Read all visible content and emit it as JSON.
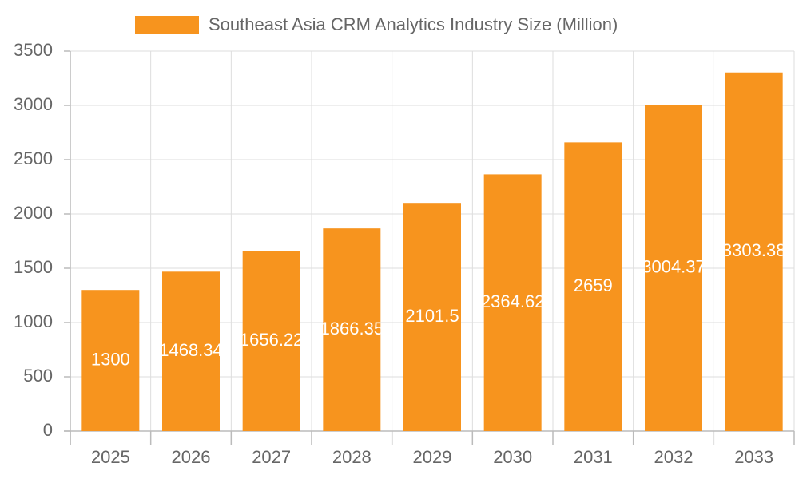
{
  "chart_data": {
    "type": "bar",
    "categories": [
      "2025",
      "2026",
      "2027",
      "2028",
      "2029",
      "2030",
      "2031",
      "2032",
      "2033"
    ],
    "series": [
      {
        "name": "Southeast Asia CRM Analytics Industry Size (Million)",
        "color": "#f7941e",
        "values": [
          1300,
          1468.34,
          1656.22,
          1866.35,
          2101.5,
          2364.62,
          2659,
          3004.37,
          3303.38
        ]
      }
    ],
    "ylim": [
      0,
      3500
    ],
    "yticks": [
      0,
      500,
      1000,
      1500,
      2000,
      2500,
      3000,
      3500
    ],
    "grid": true,
    "legend": "top"
  }
}
